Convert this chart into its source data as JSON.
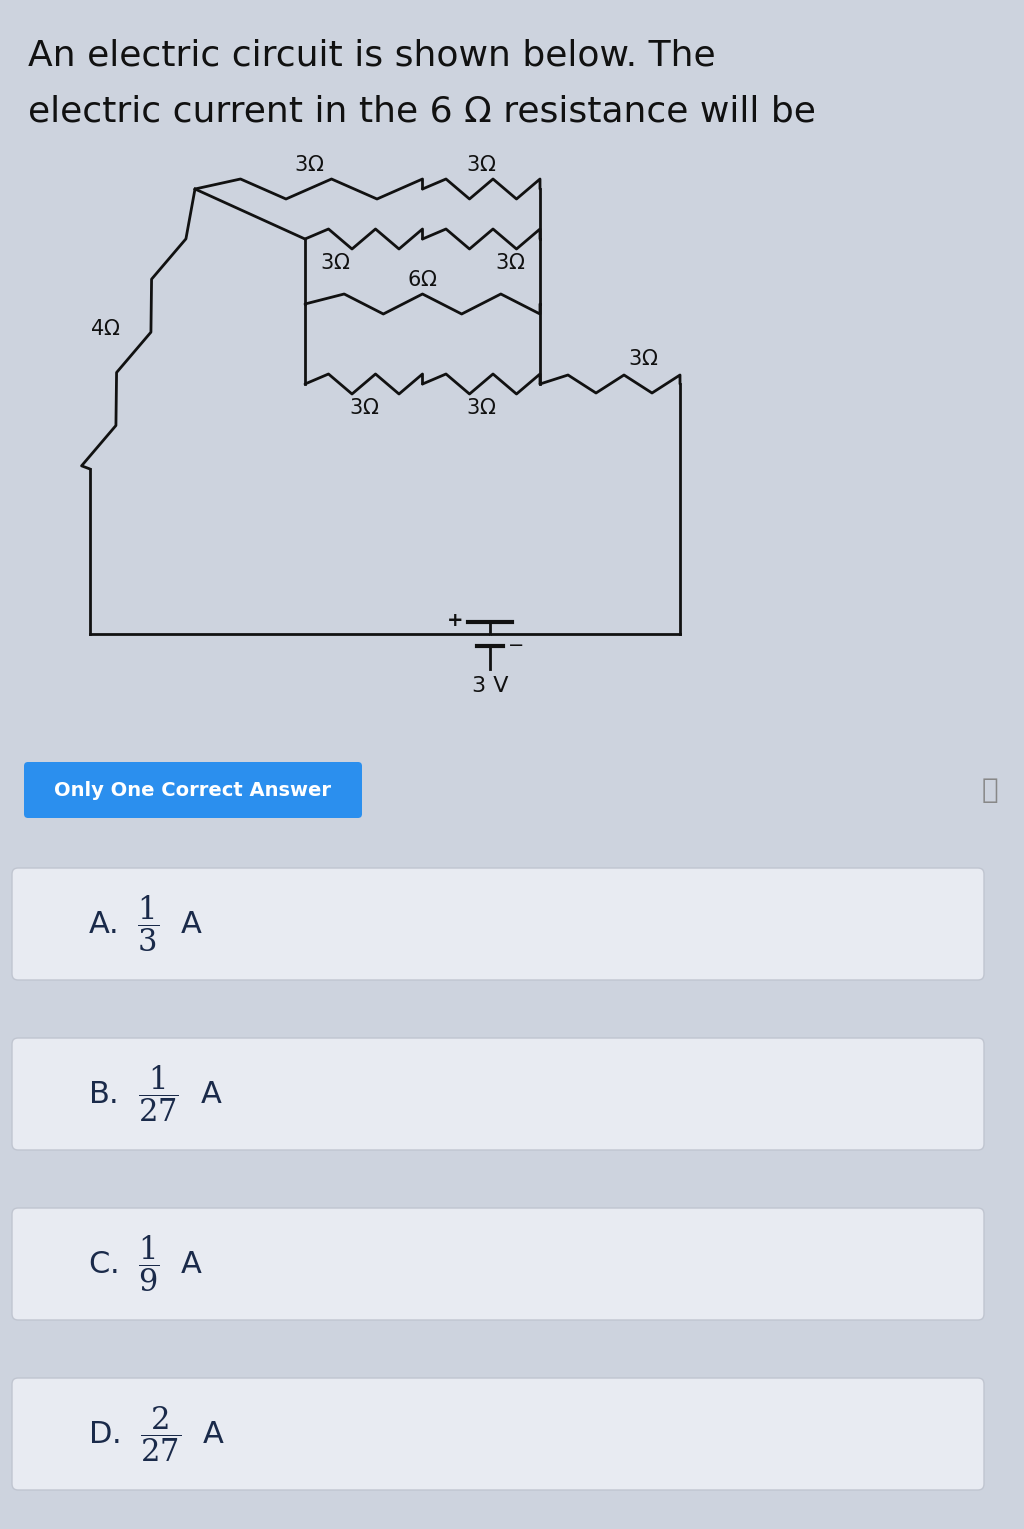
{
  "title_line1": "An electric circuit is shown below. The",
  "title_line2": "electric current in the 6 Ω resistance will be",
  "bg_color": "#cdd3de",
  "circuit_color": "#111111",
  "only_one_bg": "#2b8fee",
  "only_one_text": "Only One Correct Answer",
  "options": [
    {
      "label": "A.",
      "num": "1",
      "den": "3",
      "unit": "A"
    },
    {
      "label": "B.",
      "num": "1",
      "den": "27",
      "unit": "A"
    },
    {
      "label": "C.",
      "num": "1",
      "den": "9",
      "unit": "A"
    },
    {
      "label": "D.",
      "num": "2",
      "den": "27",
      "unit": "A"
    }
  ]
}
